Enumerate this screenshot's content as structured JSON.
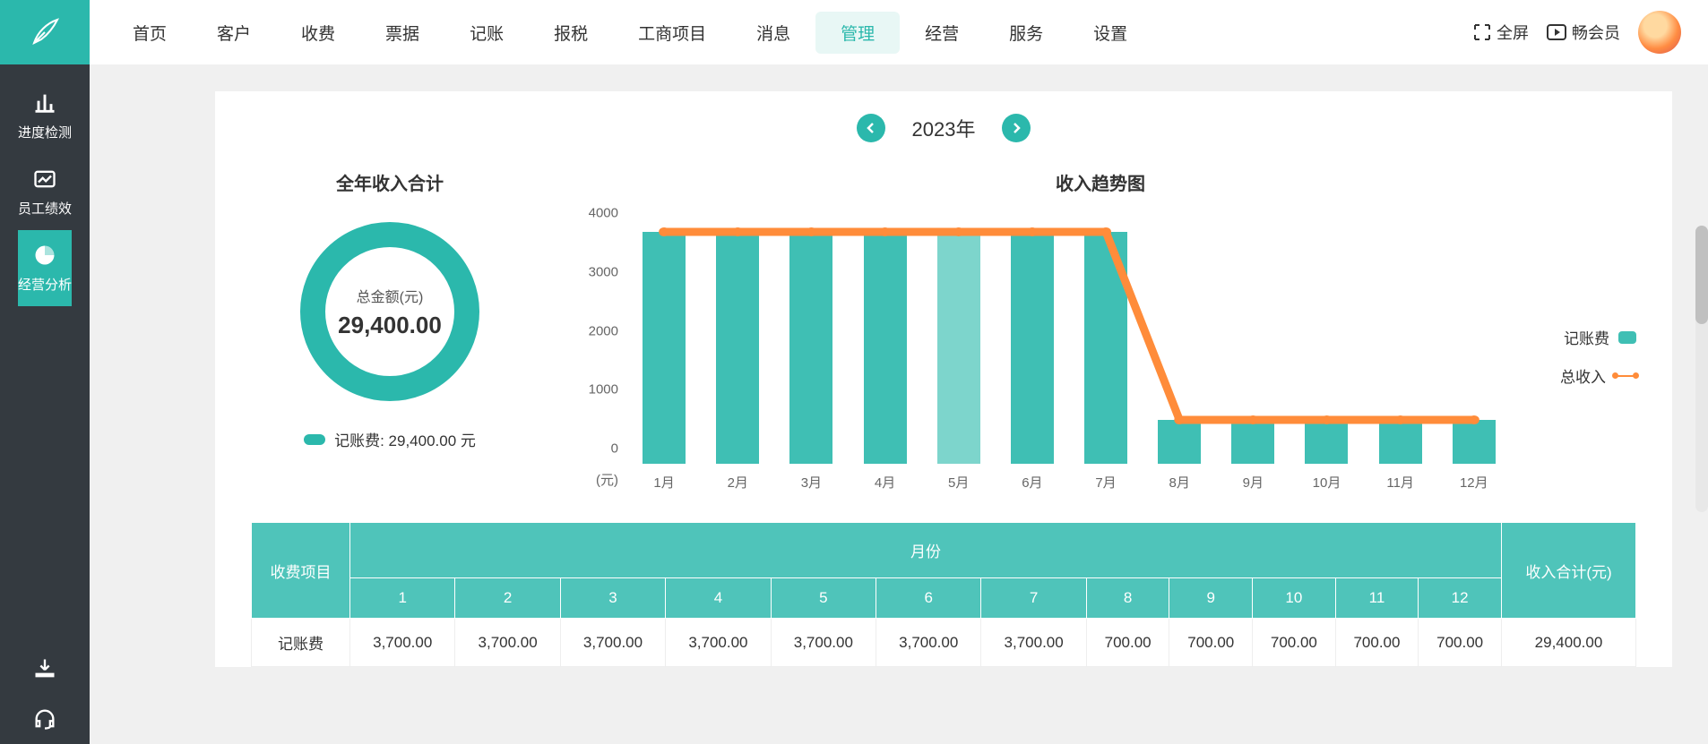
{
  "topnav": {
    "items": [
      "首页",
      "客户",
      "收费",
      "票据",
      "记账",
      "报税",
      "工商项目",
      "消息",
      "管理",
      "经营",
      "服务",
      "设置"
    ],
    "active_index": 8,
    "right": {
      "fullscreen": "全屏",
      "member": "畅会员"
    }
  },
  "sidebar": {
    "items": [
      {
        "label": "进度检测",
        "icon": "bar-chart-icon"
      },
      {
        "label": "员工绩效",
        "icon": "trend-icon"
      },
      {
        "label": "经营分析",
        "icon": "pie-icon"
      }
    ],
    "active_index": 2,
    "bottom_icons": [
      "download-icon",
      "headset-icon"
    ]
  },
  "year_selector": {
    "year": "2023年"
  },
  "summary": {
    "title": "全年收入合计",
    "ring_label": "总金额(元)",
    "ring_value": "29,400.00",
    "ring_color": "#2bb8ac",
    "legend": {
      "label": "记账费: 29,400.00 元",
      "color": "#2bb8ac"
    }
  },
  "trend_chart": {
    "title": "收入趋势图",
    "type": "bar+line",
    "y_unit": "(元)",
    "ylim": [
      0,
      4000
    ],
    "yticks": [
      0,
      1000,
      2000,
      3000,
      4000
    ],
    "x_labels": [
      "1月",
      "2月",
      "3月",
      "4月",
      "5月",
      "6月",
      "7月",
      "8月",
      "9月",
      "10月",
      "11月",
      "12月"
    ],
    "bar_values": [
      3700,
      3700,
      3700,
      3700,
      3700,
      3700,
      3700,
      700,
      700,
      700,
      700,
      700
    ],
    "line_values": [
      3700,
      3700,
      3700,
      3700,
      3700,
      3700,
      3700,
      700,
      700,
      700,
      700,
      700
    ],
    "highlight_index": 4,
    "bar_color": "#3fbfb4",
    "bar_highlight_color": "#7dd5cc",
    "line_color": "#ff8c3a",
    "background_color": "#ffffff",
    "legend": [
      {
        "label": "记账费",
        "type": "bar",
        "color": "#3fbfb4"
      },
      {
        "label": "总收入",
        "type": "line",
        "color": "#ff8c3a"
      }
    ]
  },
  "table": {
    "project_col": "收费项目",
    "month_header": "月份",
    "total_col": "收入合计(元)",
    "month_numbers": [
      "1",
      "2",
      "3",
      "4",
      "5",
      "6",
      "7",
      "8",
      "9",
      "10",
      "11",
      "12"
    ],
    "rows": [
      {
        "name": "记账费",
        "values": [
          "3,700.00",
          "3,700.00",
          "3,700.00",
          "3,700.00",
          "3,700.00",
          "3,700.00",
          "3,700.00",
          "700.00",
          "700.00",
          "700.00",
          "700.00",
          "700.00"
        ],
        "total": "29,400.00"
      }
    ],
    "header_bg": "#4fc4ba",
    "header_fg": "#ffffff"
  }
}
